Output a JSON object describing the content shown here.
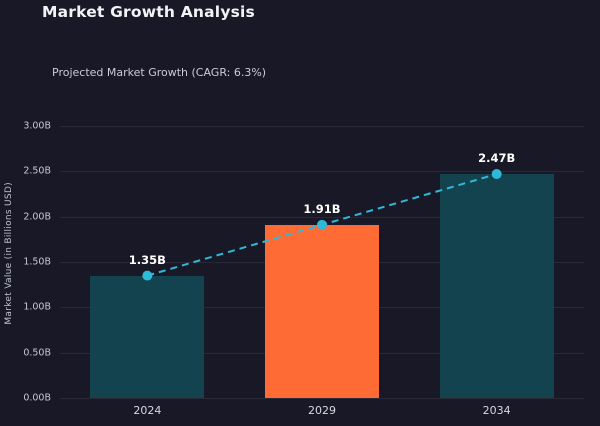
{
  "chart_data": {
    "type": "bar",
    "title": "Market Growth Analysis",
    "subtitle": "Projected Market Growth (CAGR: 6.3%)",
    "categories": [
      "2024",
      "2029",
      "2034"
    ],
    "values": [
      1.35,
      1.91,
      2.47
    ],
    "value_labels": [
      "1.35B",
      "1.91B",
      "2.47B"
    ],
    "bar_colors": [
      "#12434e",
      "#ff6b35",
      "#12434e"
    ],
    "xlabel": "",
    "ylabel": "Market Value (in Billions USD)",
    "ylim": [
      0,
      3
    ],
    "ytick_step": 0.5,
    "ytick_labels": [
      "0.00B",
      "0.50B",
      "1.00B",
      "1.50B",
      "2.00B",
      "2.50B",
      "3.00B"
    ],
    "grid": true,
    "legend": "none",
    "trend_line_color": "#2fb9d9",
    "marker_color": "#2fb9d9",
    "background_color": "#181826"
  }
}
